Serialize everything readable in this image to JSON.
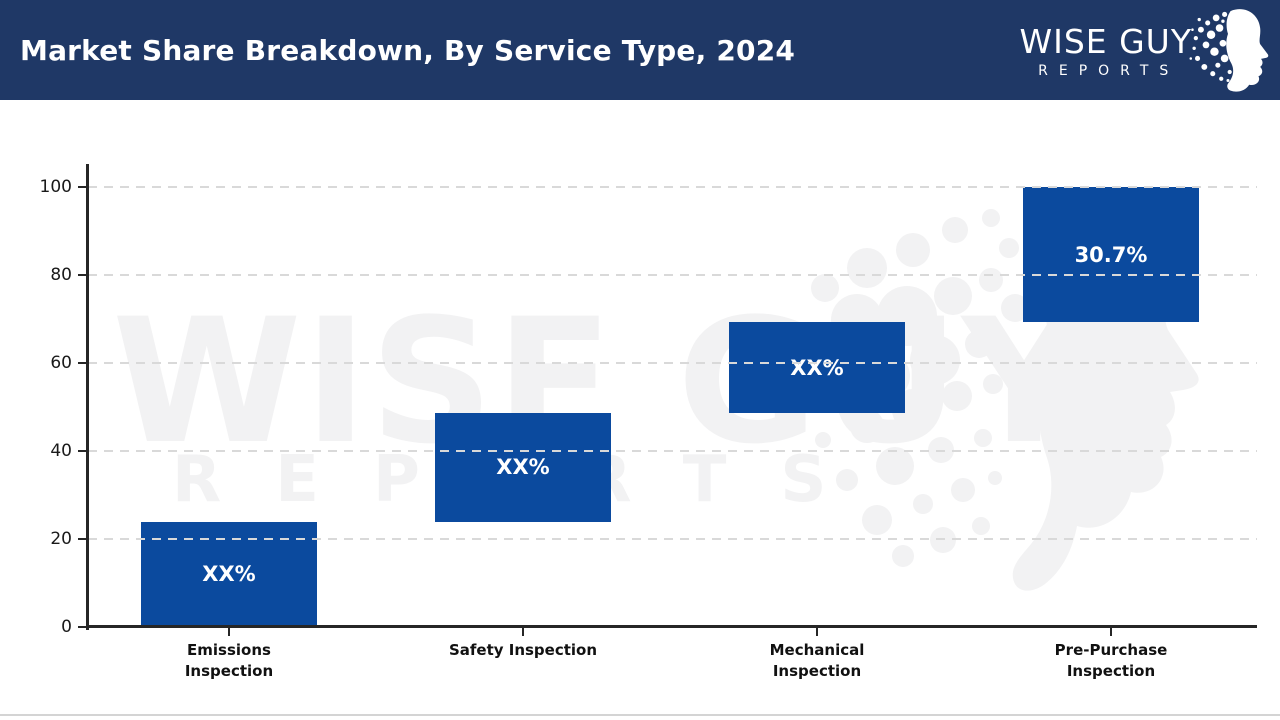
{
  "header": {
    "title": "Market Share Breakdown, By Service Type, 2024",
    "logo": {
      "line1": "WISE GUY",
      "line2": "REPORTS"
    }
  },
  "watermark": {
    "line1": "WISE GUY",
    "line2": "REPORTS"
  },
  "colors": {
    "header_bg": "#1F3866",
    "bar_fill": "#0B4A9E",
    "bar_label": "#FFFFFF",
    "gridline": "#D9D9D9",
    "axis": "#262626",
    "tick_label": "#1A1A1A",
    "category_label": "#111111",
    "watermark": "#F2F2F3",
    "title_text": "#FFFFFF",
    "bottom_rule": "#D4D4D4"
  },
  "chart_data": {
    "type": "bar",
    "variant": "floating-waterfall",
    "title": "Market Share Breakdown, By Service Type, 2024",
    "categories": [
      "Emissions\nInspection",
      "Safety Inspection",
      "Mechanical\nInspection",
      "Pre-Purchase\nInspection"
    ],
    "segments": [
      {
        "category": "Emissions Inspection",
        "start": 0,
        "end": 23.9,
        "value": 23.9,
        "bar_label": "XX%"
      },
      {
        "category": "Safety Inspection",
        "start": 23.9,
        "end": 48.6,
        "value": 24.7,
        "bar_label": "XX%"
      },
      {
        "category": "Mechanical Inspection",
        "start": 48.6,
        "end": 69.3,
        "value": 20.7,
        "bar_label": "XX%"
      },
      {
        "category": "Pre-Purchase Inspection",
        "start": 69.3,
        "end": 100,
        "value": 30.7,
        "bar_label": "30.7%"
      }
    ],
    "ylim": [
      0,
      100
    ],
    "yticks": [
      0,
      20,
      40,
      60,
      80,
      100
    ],
    "xlabel": "",
    "ylabel": "",
    "grid": "horizontal-dashed",
    "legend": "none"
  }
}
